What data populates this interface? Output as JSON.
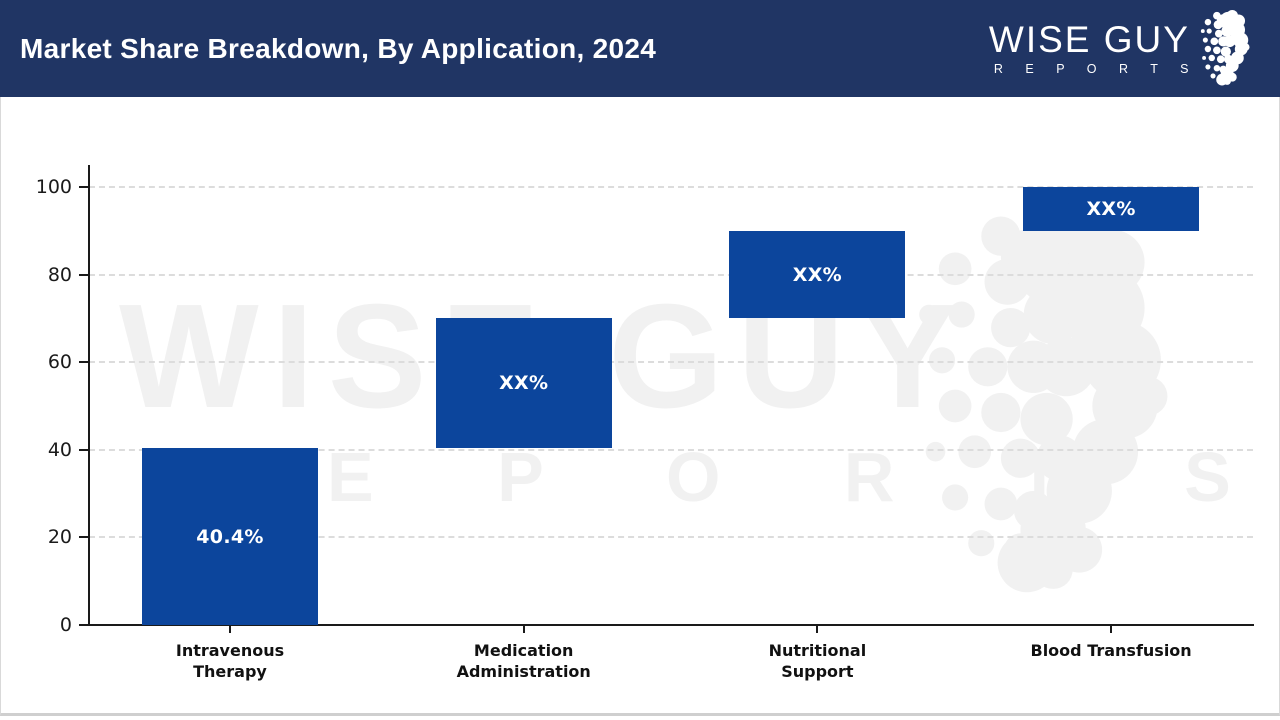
{
  "header": {
    "title": "Market Share Breakdown, By Application, 2024",
    "logo": {
      "wordmark": "WISE GUY",
      "sub": "R E P O R T S",
      "head_icon": "dotted-head-profile-icon"
    }
  },
  "watermark": {
    "wordmark": "WISE GUY",
    "sub": "R E P O R T S",
    "head_icon": "dotted-head-profile-icon"
  },
  "colors": {
    "header_bg": "#203564",
    "title_text": "#ffffff",
    "bar_fill": "#0c459c",
    "bar_label_text": "#ffffff",
    "grid": "#dcdcdc",
    "axis": "#1a1a1a",
    "watermark": "#f1f1f1"
  },
  "chart_data": {
    "type": "bar",
    "subtype": "floating-waterfall",
    "title": "Market Share Breakdown, By Application, 2024",
    "categories": [
      "Intravenous Therapy",
      "Medication Administration",
      "Nutritional Support",
      "Blood Transfusion"
    ],
    "category_label_lines": [
      [
        "Intravenous",
        "Therapy"
      ],
      [
        "Medication",
        "Administration"
      ],
      [
        "Nutritional",
        "Support"
      ],
      [
        "Blood Transfusion"
      ]
    ],
    "series": [
      {
        "name": "Market Share (%)",
        "segments": [
          {
            "category": "Intravenous Therapy",
            "start": 0,
            "end": 40.4,
            "label": "40.4%"
          },
          {
            "category": "Medication Administration",
            "start": 40.4,
            "end": 70,
            "label": "XX%"
          },
          {
            "category": "Nutritional Support",
            "start": 70,
            "end": 90,
            "label": "XX%"
          },
          {
            "category": "Blood Transfusion",
            "start": 90,
            "end": 100,
            "label": "XX%"
          }
        ]
      }
    ],
    "xlabel": "",
    "ylabel": "",
    "ylim": [
      0,
      100
    ],
    "yticks": [
      0,
      20,
      40,
      60,
      80,
      100
    ],
    "grid": "horizontal-dashed",
    "legend": "none"
  }
}
